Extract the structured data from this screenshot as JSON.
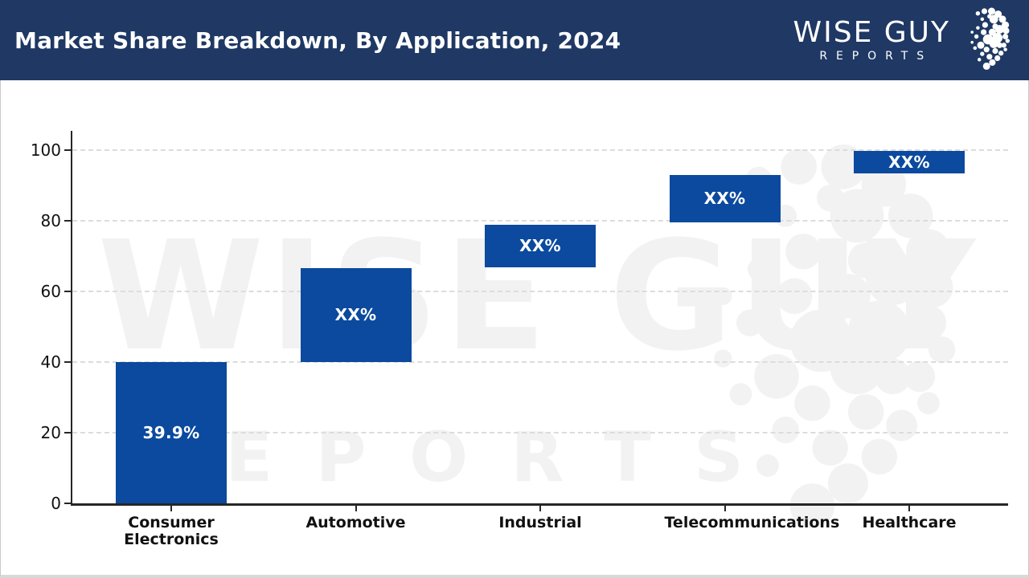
{
  "header": {
    "title": "Market Share Breakdown, By Application, 2024",
    "bg_color": "#1F3864",
    "logo": {
      "line1": "WISE GUY",
      "line2": "REPORTS"
    }
  },
  "watermark": {
    "line1": "WISE GUY",
    "line2": "REPORTS"
  },
  "chart_data": {
    "type": "bar",
    "subtype": "waterfall",
    "title": "Market Share Breakdown, By Application, 2024",
    "categories": [
      "Consumer Electronics",
      "Automotive",
      "Industrial",
      "Telecommunications",
      "Healthcare"
    ],
    "segments": [
      {
        "category": "Consumer Electronics",
        "start": 0,
        "end": 39.9,
        "value_label": "39.9%"
      },
      {
        "category": "Automotive",
        "start": 40.0,
        "end": 66.7,
        "value_label": "XX%"
      },
      {
        "category": "Industrial",
        "start": 66.9,
        "end": 78.9,
        "value_label": "XX%"
      },
      {
        "category": "Telecommunications",
        "start": 79.5,
        "end": 93.0,
        "value_label": "XX%"
      },
      {
        "category": "Healthcare",
        "start": 93.4,
        "end": 99.8,
        "value_label": "XX%"
      }
    ],
    "xlabel": "",
    "ylabel": "",
    "y_ticks": [
      0,
      20,
      40,
      60,
      80,
      100
    ],
    "ylim": [
      0,
      105.5
    ],
    "grid": "dashed-horizontal",
    "legend": "none",
    "bar_color": "#0B4A9E",
    "value_label_color": "#ffffff",
    "axis_color": "#262626",
    "grid_color": "#dcdcdc"
  }
}
